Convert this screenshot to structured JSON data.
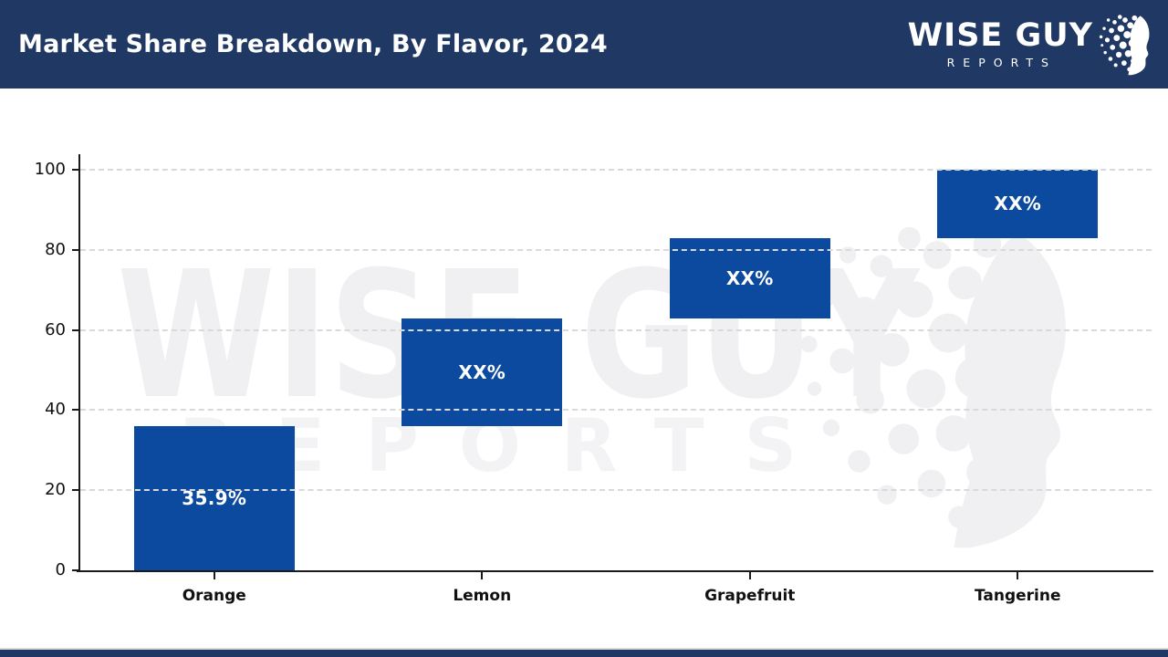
{
  "header": {
    "title": "Market Share Breakdown, By Flavor, 2024",
    "brand": {
      "line1": "WISE GUY",
      "line2": "REPORTS"
    }
  },
  "watermark": {
    "line1": "WISE GUY",
    "line2": "REPORTS"
  },
  "colors": {
    "header_bg": "#1f3864",
    "footer_bg": "#1f3864",
    "bar": "#0c4aa0",
    "grid": "#d9d9d9",
    "axis": "#1a1a1a",
    "bar_label_text": "#ffffff",
    "watermark_text": "#f0f0f2",
    "watermark_text_light": "#f3f3f5"
  },
  "chart_data": {
    "type": "bar",
    "subtype": "waterfall-floating-bars",
    "title": "Market Share Breakdown, By Flavor, 2024",
    "categories": [
      "Orange",
      "Lemon",
      "Grapefruit",
      "Tangerine"
    ],
    "segments": [
      {
        "category": "Orange",
        "start": 0,
        "end": 35.9,
        "label": "35.9%"
      },
      {
        "category": "Lemon",
        "start": 35.9,
        "end": 62.9,
        "label": "XX%"
      },
      {
        "category": "Grapefruit",
        "start": 62.9,
        "end": 83.0,
        "label": "XX%"
      },
      {
        "category": "Tangerine",
        "start": 83.0,
        "end": 100.0,
        "label": "XX%"
      }
    ],
    "xlabel": "",
    "ylabel": "",
    "ylim": [
      0,
      100
    ],
    "yticks": [
      0,
      20,
      40,
      60,
      80,
      100
    ],
    "grid": "horizontal-dashed-over-bars",
    "legend": "none",
    "bar_width_frac": 0.6
  }
}
